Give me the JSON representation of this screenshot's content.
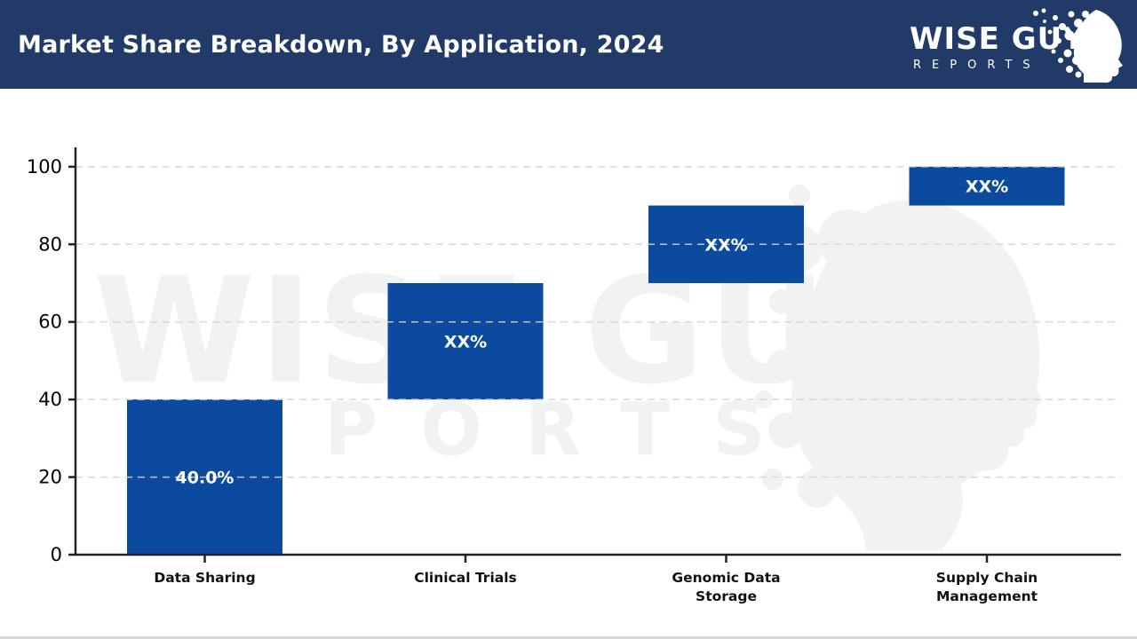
{
  "header": {
    "title": "Market Share Breakdown, By Application, 2024",
    "bg_color": "#213a68",
    "logo": {
      "line1": "WISE GUY",
      "line2": "REPORTS"
    }
  },
  "watermark": {
    "line1": "WISE GUY",
    "line2": "REPORTS"
  },
  "chart_data": {
    "type": "bar",
    "subtype": "waterfall",
    "title": "Market Share Breakdown, By Application, 2024",
    "categories": [
      "Data Sharing",
      "Clinical Trials",
      "Genomic Data Storage",
      "Supply Chain Management"
    ],
    "category_display": [
      [
        "Data Sharing"
      ],
      [
        "Clinical Trials"
      ],
      [
        "Genomic Data",
        "Storage"
      ],
      [
        "Supply Chain",
        "Management"
      ]
    ],
    "starts": [
      0,
      40,
      70,
      90
    ],
    "values": [
      40,
      30,
      20,
      10
    ],
    "bar_labels": [
      "40.0%",
      "XX%",
      "XX%",
      "XX%"
    ],
    "yticks": [
      0,
      20,
      40,
      60,
      80,
      100
    ],
    "ylim": [
      0,
      105
    ],
    "xlabel": "",
    "ylabel": "",
    "grid": "horizontal-dashed",
    "legend": "none",
    "colors": {
      "bar": "#0c4a9f",
      "grid": "#d4d4d4",
      "axis": "#222222",
      "tick_label": "#000000",
      "bar_label": "#ffffff",
      "watermark": "#f2f2f3"
    }
  }
}
